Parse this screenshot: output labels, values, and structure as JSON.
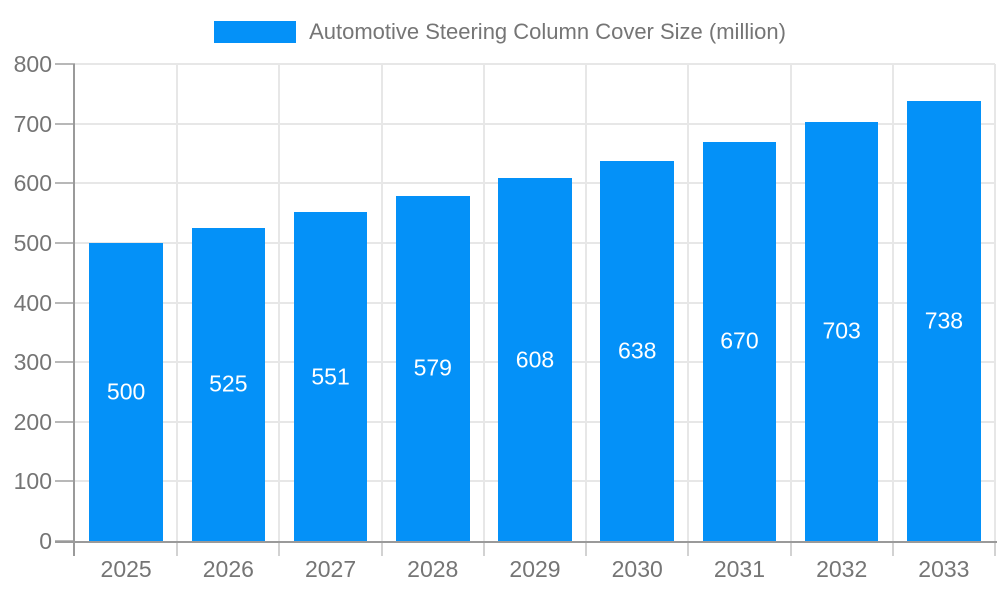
{
  "chart_data": {
    "type": "bar",
    "title": "Automotive Steering Column Cover Size (million)",
    "categories": [
      "2025",
      "2026",
      "2027",
      "2028",
      "2029",
      "2030",
      "2031",
      "2032",
      "2033"
    ],
    "values": [
      500,
      525,
      551,
      579,
      608,
      638,
      670,
      703,
      738
    ],
    "xlabel": "",
    "ylabel": "",
    "ylim": [
      0,
      800
    ],
    "yticks": [
      0,
      100,
      200,
      300,
      400,
      500,
      600,
      700,
      800
    ],
    "grid": true,
    "legend_position": "top-center",
    "value_label_position": "inside-middle",
    "colors": {
      "bar": "#0491f8",
      "grid_line": "#e7e7e7",
      "axis_line": "#9a9a9a",
      "y_tick_line": "#b8b8b8",
      "x_tick_line": "#d2d2d2",
      "axis_text": "#757575",
      "value_text": "#ffffff",
      "background": "#ffffff"
    }
  }
}
